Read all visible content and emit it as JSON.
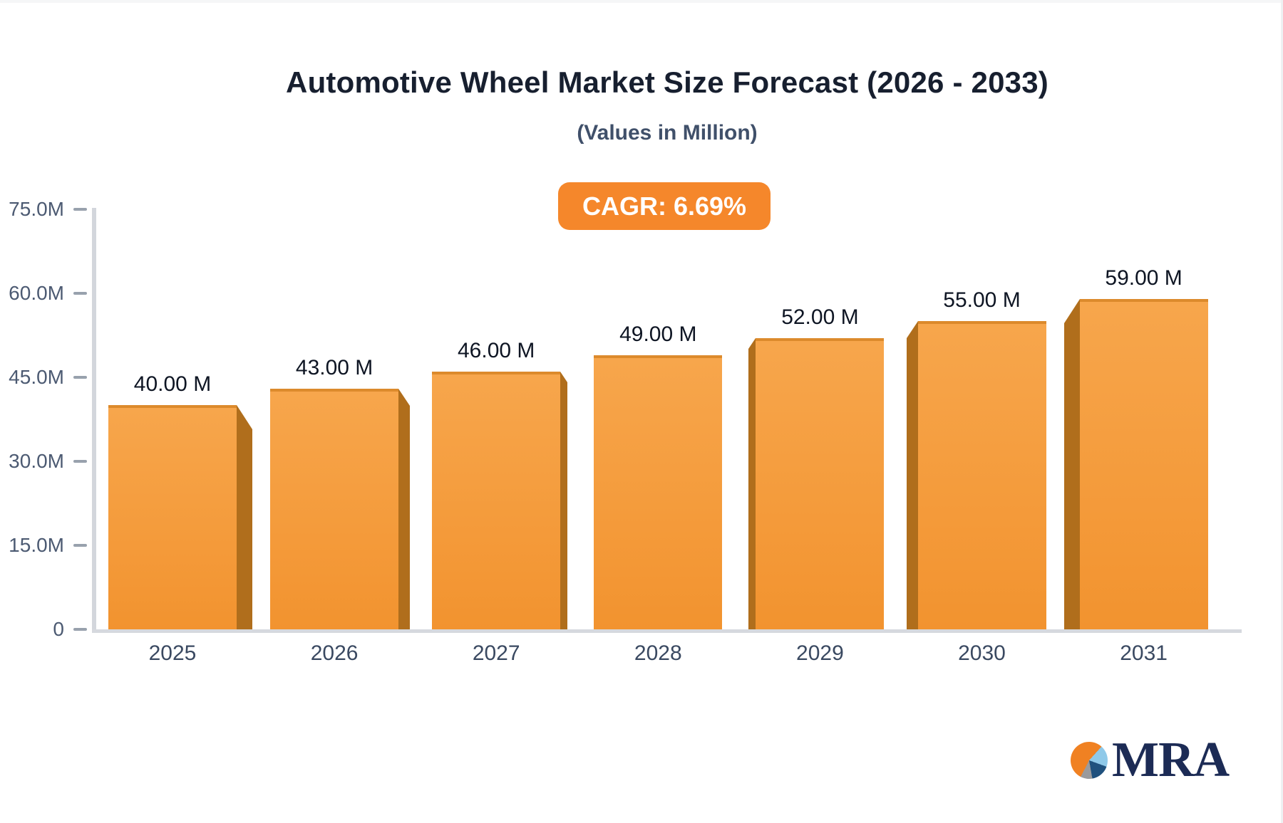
{
  "header": {
    "title": "Automotive Wheel Market Size Forecast (2026 - 2033)",
    "subtitle": "(Values in Million)"
  },
  "badge": {
    "label": "CAGR: 6.69%",
    "bg_color": "#f5872b",
    "text_color": "#ffffff"
  },
  "chart_data": {
    "type": "bar",
    "title": "Automotive Wheel Market Size Forecast (2026 - 2033)",
    "subtitle": "(Values in Million)",
    "cagr_percent": 6.69,
    "categories": [
      "2025",
      "2026",
      "2027",
      "2028",
      "2029",
      "2030",
      "2031"
    ],
    "values_millions": [
      40,
      43,
      46,
      49,
      52,
      55,
      59
    ],
    "data_labels": [
      "40.00 M",
      "43.00 M",
      "46.00 M",
      "49.00 M",
      "52.00 M",
      "55.00 M",
      "59.00 M"
    ],
    "ylabel": "",
    "xlabel": "",
    "ylim_millions": [
      0,
      75
    ],
    "y_ticks": [
      {
        "value_millions": 0,
        "label": "0"
      },
      {
        "value_millions": 15,
        "label": "15.0M"
      },
      {
        "value_millions": 30,
        "label": "30.0M"
      },
      {
        "value_millions": 45,
        "label": "45.0M"
      },
      {
        "value_millions": 60,
        "label": "60.0M"
      },
      {
        "value_millions": 75,
        "label": "75.0M"
      }
    ],
    "grid": "off",
    "legend": "none",
    "bar_style": {
      "face_color_top": "#f7a64c",
      "face_color_bottom": "#f2932f",
      "top_edge_color": "#dc8a2c",
      "side_3d_color": "#b06e1c"
    }
  },
  "logo": {
    "text": "MRA",
    "pie_colors": {
      "orange": "#f08122",
      "light_blue": "#8fc9e9",
      "navy": "#20517e",
      "gray": "#9a9a9c"
    }
  }
}
